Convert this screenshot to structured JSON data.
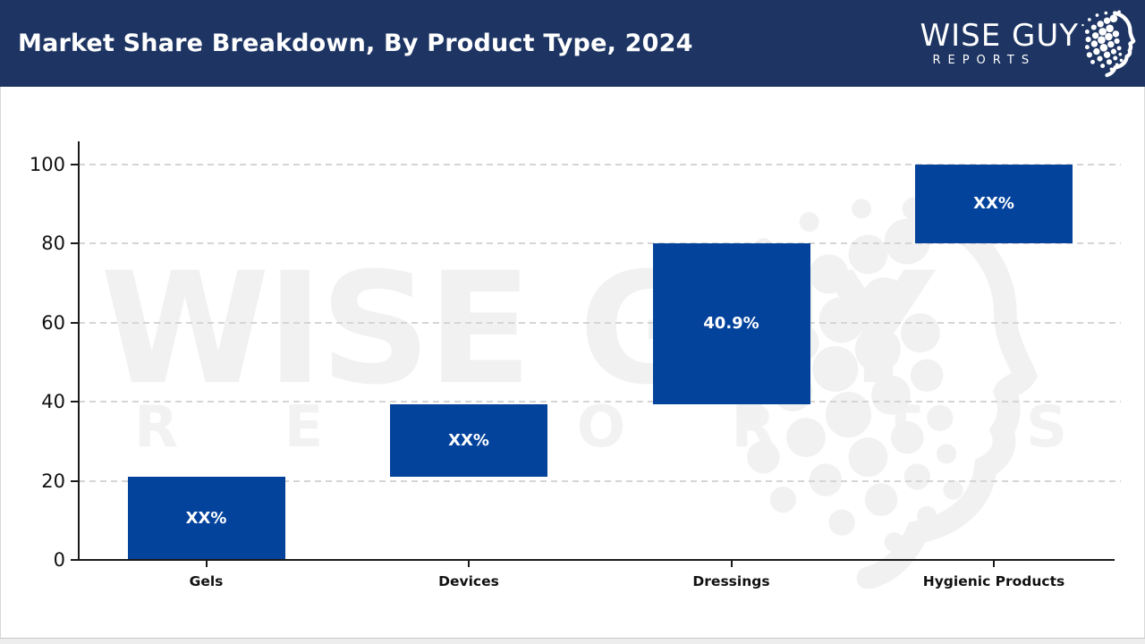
{
  "header": {
    "title": "Market Share Breakdown, By Product Type, 2024",
    "background": "#1e3563",
    "logo": {
      "line1": "WISE GUY",
      "line2": "REPORTS"
    }
  },
  "watermark": {
    "line1": "WISE GUY",
    "line2": "R E P O R T S"
  },
  "chart_data": {
    "type": "bar",
    "variant": "waterfall",
    "title": "Market Share Breakdown, By Product Type, 2024",
    "categories": [
      "Gels",
      "Devices",
      "Dressings",
      "Hygienic Products"
    ],
    "segments": [
      {
        "category": "Gels",
        "start": 0,
        "end": 21.0,
        "value_label": "XX%"
      },
      {
        "category": "Devices",
        "start": 21.0,
        "end": 39.3,
        "value_label": "XX%"
      },
      {
        "category": "Dressings",
        "start": 39.3,
        "end": 80.2,
        "value_label": "40.9%"
      },
      {
        "category": "Hygienic Products",
        "start": 80.2,
        "end": 100,
        "value_label": "XX%"
      }
    ],
    "xlabel": "",
    "ylabel": "",
    "ylim": [
      0,
      100
    ],
    "yticks": [
      0,
      20,
      40,
      60,
      80,
      100
    ],
    "grid": {
      "horizontal": true,
      "style": "dashed"
    },
    "legend": null,
    "bar_color": "#04439c",
    "bar_label_color": "#ffffff"
  },
  "colors": {
    "header_bg": "#1e3563",
    "bar_blue": "#04439c",
    "axis": "#1a1a1a",
    "gridline": "#d5d5d5",
    "watermark": "#f1f1f1",
    "page_border": "#d9d9d9"
  }
}
